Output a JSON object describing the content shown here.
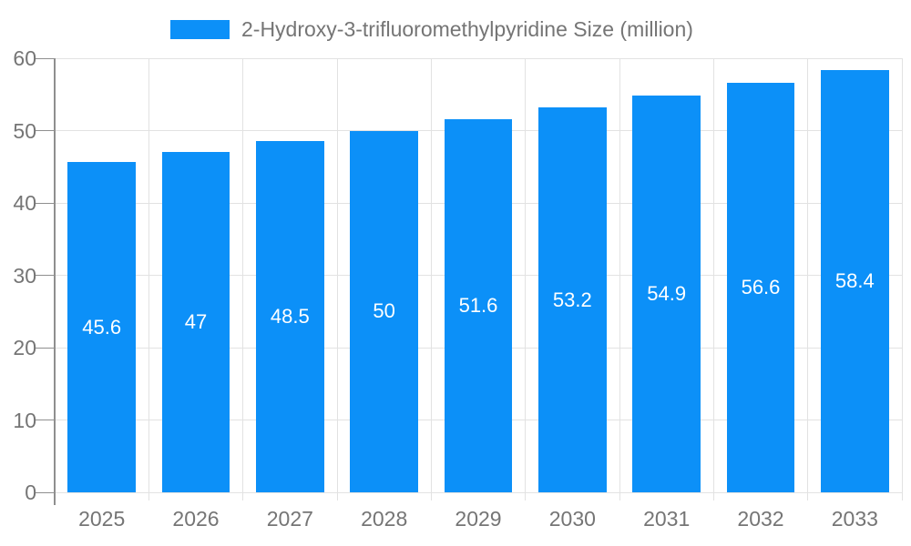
{
  "legend": {
    "label": "2-Hydroxy-3-trifluoromethylpyridine Size (million)"
  },
  "chart_data": {
    "type": "bar",
    "title": "",
    "xlabel": "",
    "ylabel": "",
    "legend": [
      "2-Hydroxy-3-trifluoromethylpyridine Size (million)"
    ],
    "legend_position": "top",
    "categories": [
      "2025",
      "2026",
      "2027",
      "2028",
      "2029",
      "2030",
      "2031",
      "2032",
      "2033"
    ],
    "values": [
      45.6,
      47,
      48.5,
      50,
      51.6,
      53.2,
      54.9,
      56.6,
      58.4
    ],
    "value_labels": [
      "45.6",
      "47",
      "48.5",
      "50",
      "51.6",
      "53.2",
      "54.9",
      "56.6",
      "58.4"
    ],
    "ylim": [
      0,
      60
    ],
    "yticks": [
      0,
      10,
      20,
      30,
      40,
      50,
      60
    ],
    "grid": true
  },
  "colors": {
    "bar": "#0c90f8",
    "grid_line": "#e2e2e2",
    "axis_line": "#8f8f8f",
    "tick_label": "#757575",
    "value_label": "#ffffff",
    "background": "#ffffff"
  }
}
